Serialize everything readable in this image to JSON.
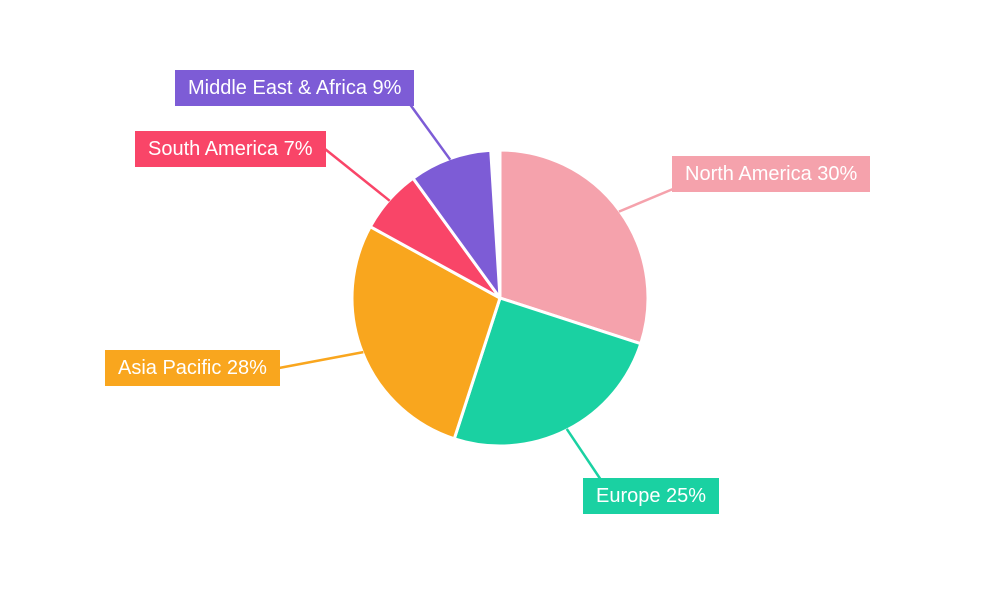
{
  "chart_data": {
    "type": "pie",
    "title": "",
    "unit": "%",
    "labels": [
      "North America",
      "Europe",
      "Asia Pacific",
      "South America",
      "Middle East & Africa"
    ],
    "values": [
      30,
      25,
      28,
      7,
      9
    ],
    "colors": [
      "#F5A2AC",
      "#1AD1A2",
      "#F9A61E",
      "#F94568",
      "#7D5CD6"
    ],
    "callout_labels": [
      "North America 30%",
      "Europe 25%",
      "Asia Pacific 28%",
      "South America 7%",
      "Middle East & Africa 9%"
    ],
    "legend_position": "callout-labels",
    "background_color": "#FFFFFF",
    "slice_border_color": "#FFFFFF",
    "start_angle_deg": 0,
    "direction": "clockwise"
  }
}
